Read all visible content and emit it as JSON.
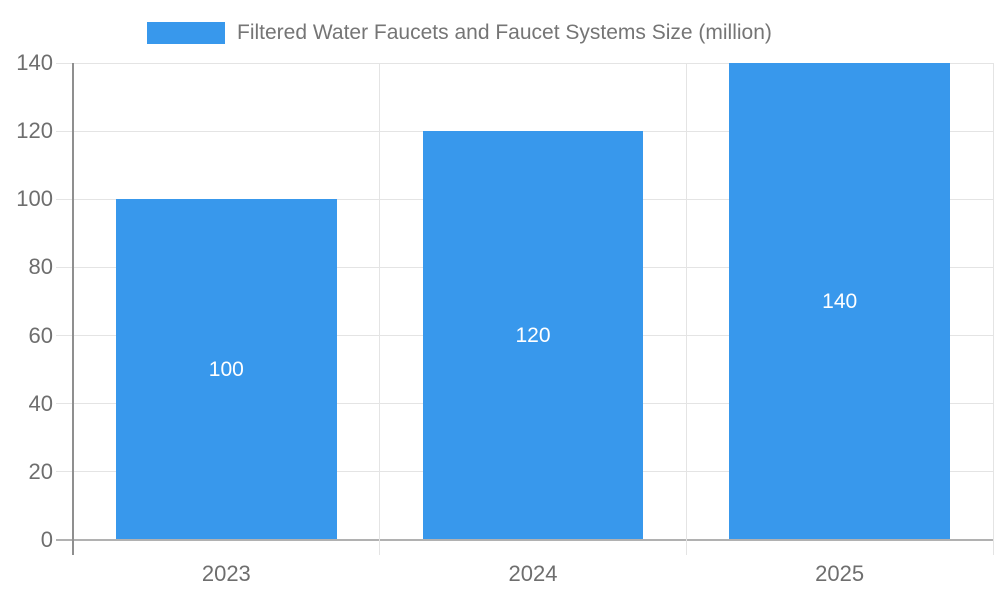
{
  "legend": {
    "label": "Filtered Water Faucets and Faucet Systems Size (million)"
  },
  "chart_data": {
    "type": "bar",
    "title": "Filtered Water Faucets and Faucet Systems Size (million)",
    "categories": [
      "2023",
      "2024",
      "2025"
    ],
    "series": [
      {
        "name": "Filtered Water Faucets and Faucet Systems Size (million)",
        "values": [
          100,
          120,
          140
        ]
      }
    ],
    "bar_labels": [
      "100",
      "120",
      "140"
    ],
    "xlabel": "",
    "ylabel": "",
    "ylim": [
      0,
      140
    ],
    "yticks": [
      0,
      20,
      40,
      60,
      80,
      100,
      120,
      140
    ],
    "grid": true,
    "legend_position": "top",
    "colors": {
      "bar": "#3898EC",
      "bar_label_text": "#FFFFFF",
      "axis_text": "#6E6E6E",
      "legend_text": "#757575",
      "gridline": "#E4E4E4",
      "category_separator": "#E4E4E4",
      "x_axis_line": "#B1B1B1",
      "y_axis_line": "#8F8F8F"
    }
  }
}
